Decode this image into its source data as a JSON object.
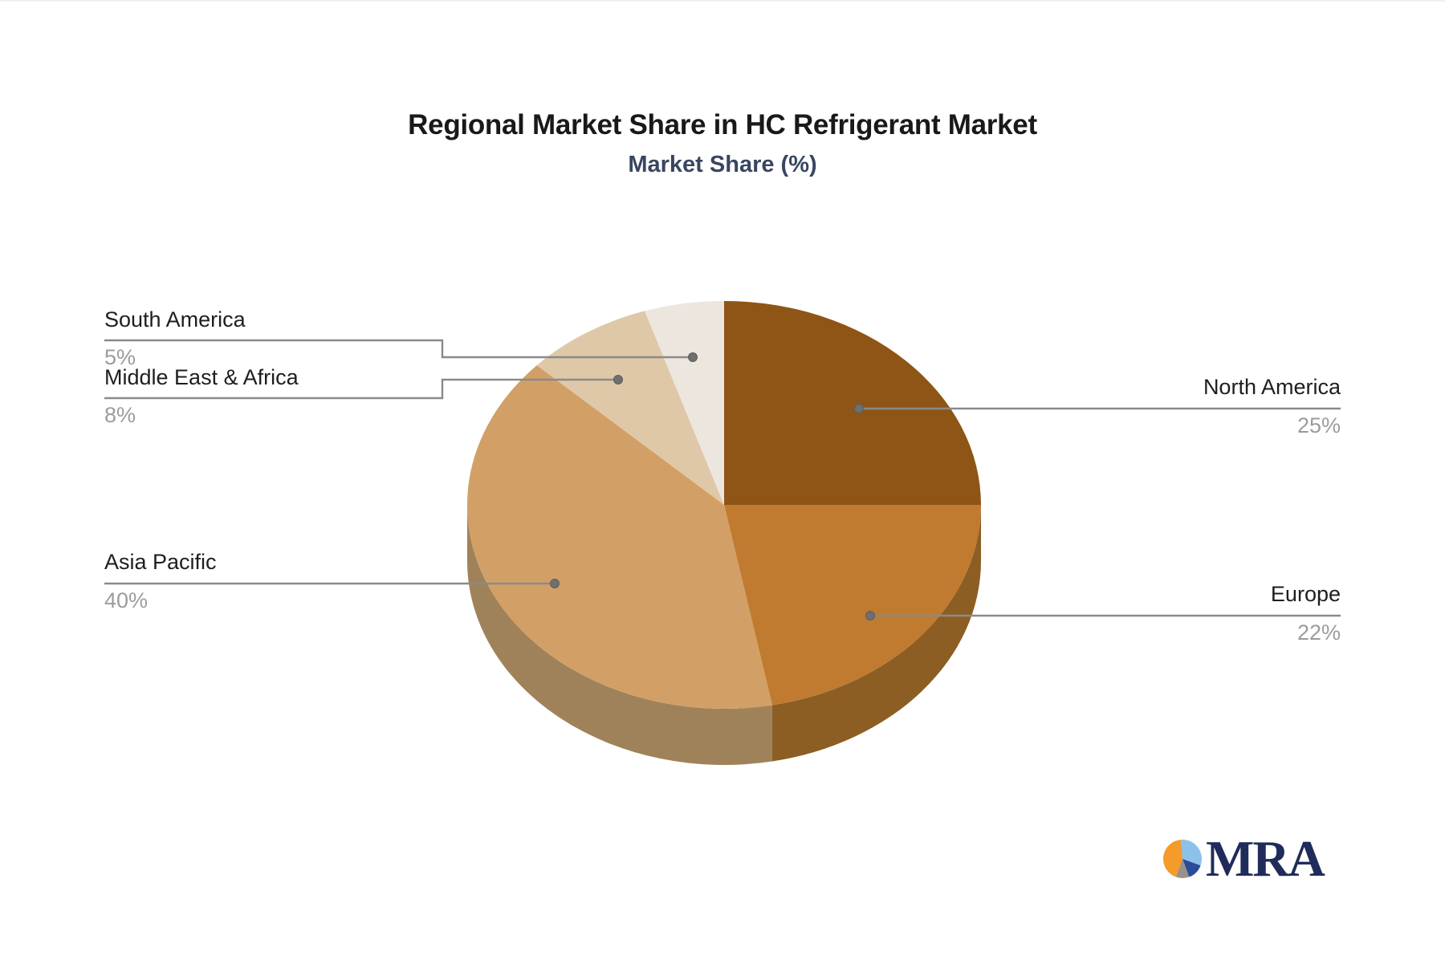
{
  "page": {
    "background": "#ffffff"
  },
  "chart_data": {
    "type": "pie",
    "style": "3d",
    "title": "Regional Market Share in HC Refrigerant Market",
    "subtitle": "Market Share (%)",
    "unit": "%",
    "direction": "clockwise",
    "start_angle": "12-oclock",
    "legend_position": "callout-labels",
    "slices": [
      {
        "label": "North America",
        "value": 25,
        "pct_label": "25%",
        "color": "#8E5517",
        "side_color": "#6B3F10"
      },
      {
        "label": "Europe",
        "value": 22,
        "pct_label": "22%",
        "color": "#C07B30",
        "side_color": "#8C5E23"
      },
      {
        "label": "Asia Pacific",
        "value": 40,
        "pct_label": "40%",
        "color": "#D2A066",
        "side_color": "#A0825A"
      },
      {
        "label": "Middle East & Africa",
        "value": 8,
        "pct_label": "8%",
        "color": "#DEC8A7",
        "side_color": "#AB9A81"
      },
      {
        "label": "South America",
        "value": 5,
        "pct_label": "5%",
        "color": "#EDE6DF",
        "side_color": "#B6B0AA"
      }
    ],
    "label_name_color": "#1E1E1E",
    "label_pct_color": "#9C9C9C",
    "leader_line_color": "#8A8A8A",
    "leader_dot_color": "#6F6F6F"
  },
  "logo": {
    "text": "MRA",
    "text_color": "#1F2B5B",
    "pie_icon_colors": {
      "orange": "#F49B2A",
      "light_blue": "#8CC2E9",
      "navy": "#2A4C99",
      "gray": "#9A9189"
    }
  }
}
